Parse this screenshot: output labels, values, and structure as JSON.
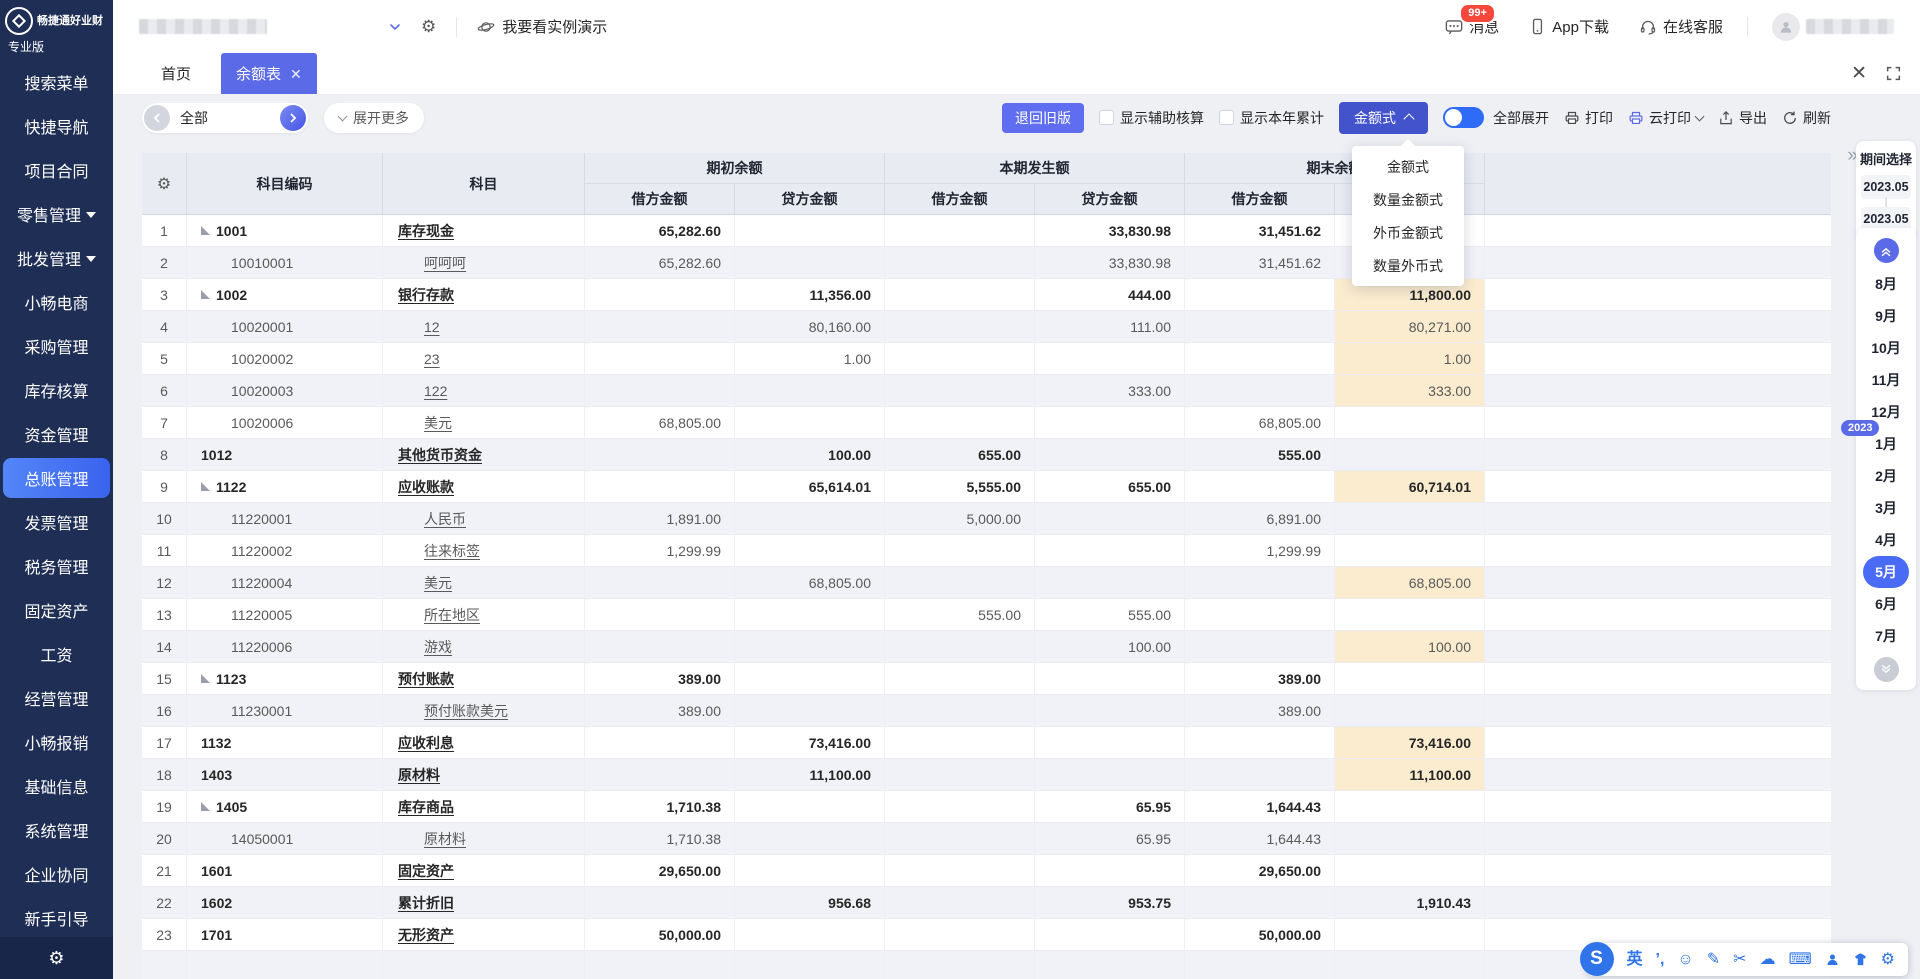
{
  "app": {
    "brand": "畅捷通好业财",
    "edition": "专业版"
  },
  "topbar": {
    "demo_link": "我要看实例演示",
    "messages": "消息",
    "messages_badge": "99+",
    "app_download": "App下载",
    "online_service": "在线客服"
  },
  "tabs": {
    "home": "首页",
    "current": "余额表"
  },
  "sidebar": {
    "items": [
      {
        "label": "搜索菜单"
      },
      {
        "label": "快捷导航"
      },
      {
        "label": "项目合同"
      },
      {
        "label": "零售管理",
        "arrow": true
      },
      {
        "label": "批发管理",
        "arrow": true
      },
      {
        "label": "小畅电商"
      },
      {
        "label": "采购管理"
      },
      {
        "label": "库存核算"
      },
      {
        "label": "资金管理"
      },
      {
        "label": "总账管理",
        "active": true
      },
      {
        "label": "发票管理"
      },
      {
        "label": "税务管理"
      },
      {
        "label": "固定资产"
      },
      {
        "label": "工资"
      },
      {
        "label": "经营管理"
      },
      {
        "label": "小畅报销"
      },
      {
        "label": "基础信息"
      },
      {
        "label": "系统管理"
      },
      {
        "label": "企业协同"
      },
      {
        "label": "新手引导"
      }
    ]
  },
  "filter": {
    "scope": "全部",
    "expand_more": "展开更多"
  },
  "toolbar": {
    "back_old": "退回旧版",
    "show_aux": "显示辅助核算",
    "show_ytd": "显示本年累计",
    "style_button": "金额式",
    "expand_all": "全部展开",
    "print": "打印",
    "cloud_print": "云打印",
    "export": "导出",
    "refresh": "刷新"
  },
  "style_menu": [
    "金额式",
    "数量金额式",
    "外币金额式",
    "数量外币式"
  ],
  "colors": {
    "accent_blue": "#5b6be8",
    "dark_blue_button": "#4353cb",
    "sidebar_navy": "#1e2e54",
    "highlight_cream": "#fbeccf",
    "badge_red": "#f5483d",
    "selected_month_blue": "#4a6bf5"
  },
  "table": {
    "headers": {
      "code": "科目编码",
      "subject": "科目",
      "opening": "期初余额",
      "current": "本期发生额",
      "closing": "期末余额",
      "debit": "借方金额",
      "credit": "贷方金额"
    },
    "rows": [
      {
        "n": "1",
        "code": "1001",
        "name": "库存现金",
        "parent": true,
        "tri": true,
        "qb": "65,282.60",
        "bc": "33,830.98",
        "eb": "31,451.62"
      },
      {
        "n": "2",
        "code": "10010001",
        "name": "呵呵呵",
        "qb": "65,282.60",
        "bc": "33,830.98",
        "eb": "31,451.62"
      },
      {
        "n": "3",
        "code": "1002",
        "name": "银行存款",
        "parent": true,
        "tri": true,
        "qc": "11,356.00",
        "bc": "444.00",
        "ec": "11,800.00",
        "hl": true
      },
      {
        "n": "4",
        "code": "10020001",
        "name": "12",
        "qc": "80,160.00",
        "bc": "111.00",
        "ec": "80,271.00",
        "hl": true
      },
      {
        "n": "5",
        "code": "10020002",
        "name": "23",
        "qc": "1.00",
        "ec": "1.00",
        "hl": true
      },
      {
        "n": "6",
        "code": "10020003",
        "name": "122",
        "bc": "333.00",
        "ec": "333.00",
        "hl": true
      },
      {
        "n": "7",
        "code": "10020006",
        "name": "美元",
        "qb": "68,805.00",
        "eb": "68,805.00"
      },
      {
        "n": "8",
        "code": "1012",
        "name": "其他货币资金",
        "parent": true,
        "qc": "100.00",
        "bb": "655.00",
        "eb": "555.00"
      },
      {
        "n": "9",
        "code": "1122",
        "name": "应收账款",
        "parent": true,
        "tri": true,
        "qc": "65,614.01",
        "bb": "5,555.00",
        "bc": "655.00",
        "ec": "60,714.01",
        "hl": true
      },
      {
        "n": "10",
        "code": "11220001",
        "name": "人民币",
        "qb": "1,891.00",
        "bb": "5,000.00",
        "eb": "6,891.00"
      },
      {
        "n": "11",
        "code": "11220002",
        "name": "往来标签",
        "qb": "1,299.99",
        "eb": "1,299.99"
      },
      {
        "n": "12",
        "code": "11220004",
        "name": "美元",
        "qc": "68,805.00",
        "ec": "68,805.00",
        "hl": true
      },
      {
        "n": "13",
        "code": "11220005",
        "name": "所在地区",
        "bb": "555.00",
        "bc": "555.00"
      },
      {
        "n": "14",
        "code": "11220006",
        "name": "游戏",
        "bc": "100.00",
        "ec": "100.00",
        "hl": true
      },
      {
        "n": "15",
        "code": "1123",
        "name": "预付账款",
        "parent": true,
        "tri": true,
        "qb": "389.00",
        "eb": "389.00"
      },
      {
        "n": "16",
        "code": "11230001",
        "name": "预付账款美元",
        "qb": "389.00",
        "eb": "389.00"
      },
      {
        "n": "17",
        "code": "1132",
        "name": "应收利息",
        "parent": true,
        "qc": "73,416.00",
        "ec": "73,416.00",
        "hl": true
      },
      {
        "n": "18",
        "code": "1403",
        "name": "原材料",
        "parent": true,
        "qc": "11,100.00",
        "ec": "11,100.00",
        "hl": true
      },
      {
        "n": "19",
        "code": "1405",
        "name": "库存商品",
        "parent": true,
        "tri": true,
        "qb": "1,710.38",
        "bc": "65.95",
        "eb": "1,644.43"
      },
      {
        "n": "20",
        "code": "14050001",
        "name": "原材料",
        "qb": "1,710.38",
        "bc": "65.95",
        "eb": "1,644.43"
      },
      {
        "n": "21",
        "code": "1601",
        "name": "固定资产",
        "parent": true,
        "qb": "29,650.00",
        "eb": "29,650.00"
      },
      {
        "n": "22",
        "code": "1602",
        "name": "累计折旧",
        "parent": true,
        "qc": "956.68",
        "bc": "953.75",
        "ec": "1,910.43"
      },
      {
        "n": "23",
        "code": "1701",
        "name": "无形资产",
        "parent": true,
        "qb": "50,000.00",
        "eb": "50,000.00"
      }
    ]
  },
  "period": {
    "title": "期间选择",
    "from": "2023.05",
    "to": "2023.05",
    "year_badge": "2023",
    "months": [
      "8月",
      "9月",
      "10月",
      "11月",
      "12月",
      "1月",
      "2月",
      "3月",
      "4月",
      "5月",
      "6月",
      "7月"
    ],
    "selected": "5月"
  },
  "ime": {
    "lang": "英",
    "punct": "’,"
  }
}
